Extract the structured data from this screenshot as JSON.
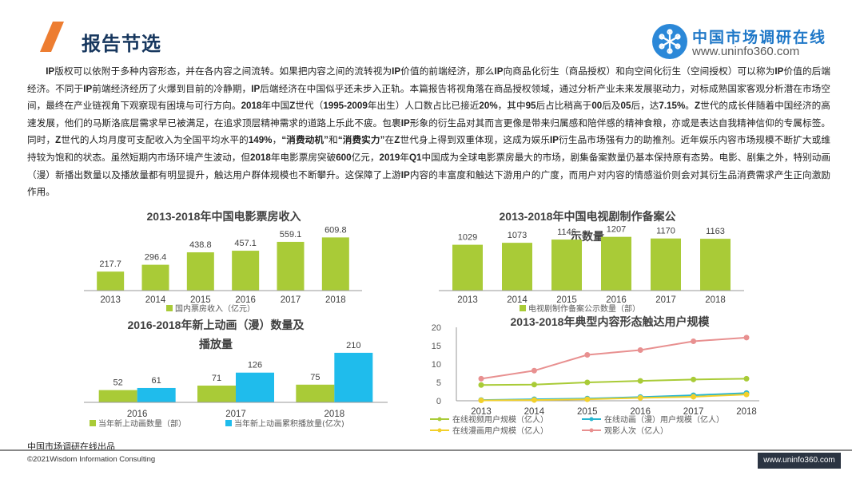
{
  "header": {
    "title": "报告节选",
    "accent_color": "#ed7d31",
    "logo": {
      "name": "中国市场调研在线",
      "url": "www.uninfo360.com",
      "icon": "snowflake-logo-icon"
    }
  },
  "paragraph": [
    {
      "t": "IP",
      "b": true
    },
    {
      "t": "版权可以依附于多种内容形态，并在各内容之间流转。如果把内容之间的流转视为"
    },
    {
      "t": "IP",
      "b": true
    },
    {
      "t": "价值的前端经济，那么"
    },
    {
      "t": "IP",
      "b": true
    },
    {
      "t": "向商品化衍生（商品授权）和向空间化衍生（空间授权）可以称为"
    },
    {
      "t": "IP",
      "b": true
    },
    {
      "t": "价值的后端经济。不同于"
    },
    {
      "t": "IP",
      "b": true
    },
    {
      "t": "前端经济经历了火爆到目前的冷静期，"
    },
    {
      "t": "IP",
      "b": true
    },
    {
      "t": "后端经济在中国似乎还未步入正轨。本篇报告将视角落在商品授权领域，通过分析产业未来发展驱动力，对标成熟国家客观分析潜在市场空间，最终在产业链视角下观察现有困境与可行方向。"
    },
    {
      "t": "2018",
      "b": true
    },
    {
      "t": "年中国"
    },
    {
      "t": "Z",
      "b": true
    },
    {
      "t": "世代（"
    },
    {
      "t": "1995-2009",
      "b": true
    },
    {
      "t": "年出生）人口数占比已接近"
    },
    {
      "t": "20%",
      "b": true
    },
    {
      "t": "，其中"
    },
    {
      "t": "95",
      "b": true
    },
    {
      "t": "后占比稍高于"
    },
    {
      "t": "00",
      "b": true
    },
    {
      "t": "后及"
    },
    {
      "t": "05",
      "b": true
    },
    {
      "t": "后，达"
    },
    {
      "t": "7.15%",
      "b": true
    },
    {
      "t": "。"
    },
    {
      "t": "Z",
      "b": true
    },
    {
      "t": "世代的成长伴随着中国经济的高速发展，他们的马斯洛底层需求早已被满足，在追求顶层精神需求的道路上乐此不疲。包裹"
    },
    {
      "t": "IP",
      "b": true
    },
    {
      "t": "形象的衍生品对其而言更像是带来归属感和陪伴感的精神食粮，亦或是表达自我精神信仰的专属标签。同时，"
    },
    {
      "t": "Z",
      "b": true
    },
    {
      "t": "世代的人均月度可支配收入为全国平均水平的"
    },
    {
      "t": "149%",
      "b": true
    },
    {
      "t": "，"
    },
    {
      "t": "“消费动机”",
      "b": true
    },
    {
      "t": "和"
    },
    {
      "t": "“消费实力”",
      "b": true
    },
    {
      "t": "在"
    },
    {
      "t": "Z",
      "b": true
    },
    {
      "t": "世代身上得到双重体现，这成为娱乐"
    },
    {
      "t": "IP",
      "b": true
    },
    {
      "t": "衍生品市场强有力的助推剂。近年娱乐内容市场规模不断扩大或维持较为饱和的状态。虽然短期内市场环境产生波动，但"
    },
    {
      "t": "2018",
      "b": true
    },
    {
      "t": "年电影票房突破"
    },
    {
      "t": "600",
      "b": true
    },
    {
      "t": "亿元，"
    },
    {
      "t": "2019",
      "b": true
    },
    {
      "t": "年"
    },
    {
      "t": "Q1",
      "b": true
    },
    {
      "t": "中国成为全球电影票房最大的市场，剧集备案数量仍基本保持原有态势。电影、剧集之外，特别动画（漫）新播出数量以及播放量都有明显提升，触达用户群体规模也不断攀升。这保障了上游"
    },
    {
      "t": "IP",
      "b": true
    },
    {
      "t": "内容的丰富度和触达下游用户的广度，而用户对内容的情感溢价则会对其衍生品消费需求产生正向激励作用。"
    }
  ],
  "chart_data": [
    {
      "id": "box-office",
      "type": "bar",
      "title": "2013-2018年中国电影票房收入",
      "categories": [
        "2013",
        "2014",
        "2015",
        "2016",
        "2017",
        "2018"
      ],
      "series": [
        {
          "name": "国内票房收入（亿元）",
          "color": "#a9cb37",
          "values": [
            217.7,
            296.4,
            438.8,
            457.1,
            559.1,
            609.8
          ]
        }
      ],
      "ylim": [
        0,
        650
      ],
      "grid": false,
      "legend": "bottom"
    },
    {
      "id": "tv-drama",
      "type": "bar",
      "title": [
        "2013-2018年中国电视剧制作备案公",
        "示数量"
      ],
      "categories": [
        "2013",
        "2014",
        "2015",
        "2016",
        "2017",
        "2018"
      ],
      "series": [
        {
          "name": "电视剧制作备案公示数量（部）",
          "color": "#a9cb37",
          "values": [
            1029,
            1073,
            1146,
            1207,
            1170,
            1163
          ]
        }
      ],
      "ylim": [
        0,
        1900
      ],
      "grid": false,
      "legend": "bottom"
    },
    {
      "id": "animation",
      "type": "bar",
      "title": [
        "2016-2018年新上动画（漫）数量及",
        "播放量"
      ],
      "categories": [
        "2016",
        "2017",
        "2018"
      ],
      "series": [
        {
          "name": "当年新上动画数量（部）",
          "color": "#a9cb37",
          "values": [
            52,
            71,
            75
          ]
        },
        {
          "name": "当年新上动画累积播放量(亿次)",
          "color": "#1fbcec",
          "values": [
            61,
            126,
            210
          ]
        }
      ],
      "ylim": [
        0,
        230
      ],
      "grid": false,
      "legend": "bottom"
    },
    {
      "id": "user-scale",
      "type": "line",
      "title": "2013-2018年典型内容形态触达用户规模",
      "x": [
        "2013",
        "2014",
        "2015",
        "2016",
        "2017",
        "2018"
      ],
      "yticks": [
        0,
        5,
        10,
        15,
        20
      ],
      "ylim": [
        0,
        20
      ],
      "series": [
        {
          "name": "在线视频用户规模（亿人）",
          "color": "#a9cb37",
          "values": [
            4.3,
            4.4,
            5.0,
            5.4,
            5.8,
            6.0
          ]
        },
        {
          "name": "在线动画（漫）用户规模（亿人）",
          "color": "#27b5cf",
          "values": [
            0.2,
            0.4,
            0.6,
            1.0,
            1.5,
            2.1
          ]
        },
        {
          "name": "在线漫画用户规模（亿人）",
          "color": "#f2d02b",
          "values": [
            0.1,
            0.2,
            0.4,
            0.8,
            1.1,
            1.7
          ]
        },
        {
          "name": "观影人次（亿人）",
          "color": "#e89090",
          "values": [
            6.0,
            8.2,
            12.5,
            13.8,
            16.2,
            17.2
          ]
        }
      ],
      "grid": false,
      "legend": "bottom"
    }
  ],
  "footer": {
    "source": "中国市场调研在线出品",
    "copyright": "©2021Wisdom Information Consulting",
    "url": "www.uninfo360.com"
  }
}
